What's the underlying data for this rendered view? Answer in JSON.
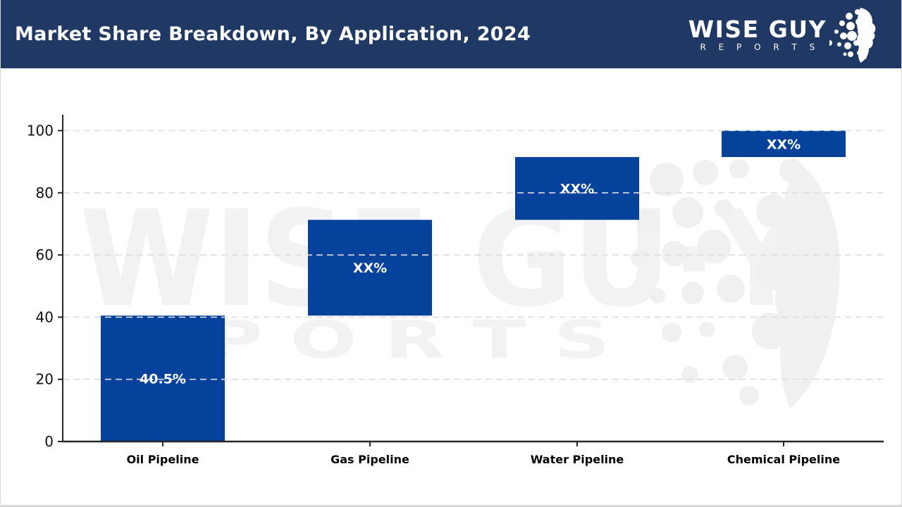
{
  "page": {
    "background": "#ffffff",
    "border_color": "#d9d9d9"
  },
  "header": {
    "bg_color": "#1f3864",
    "title": "Market Share Breakdown, By Application, 2024",
    "brand": {
      "name": "WISE GUY",
      "subtitle": "R E P O R T S"
    }
  },
  "watermark": {
    "line1": "WISE GU·Y",
    "line2": "P O R T S"
  },
  "chart_data": {
    "type": "bar",
    "subtype": "floating-segment waterfall (market share breakdown)",
    "title": "Market Share Breakdown, By Application, 2024",
    "categories": [
      "Oil Pipeline",
      "Gas Pipeline",
      "Water Pipeline",
      "Chemical Pipeline"
    ],
    "segments": [
      {
        "category": "Oil Pipeline",
        "from": 0,
        "to": 40.5,
        "label": "40.5%"
      },
      {
        "category": "Gas Pipeline",
        "from": 40.5,
        "to": 71.3,
        "label": "XX%"
      },
      {
        "category": "Water Pipeline",
        "from": 71.3,
        "to": 91.5,
        "label": "XX%"
      },
      {
        "category": "Chemical Pipeline",
        "from": 91.5,
        "to": 100,
        "label": "XX%"
      }
    ],
    "y_ticks": [
      0,
      20,
      40,
      60,
      80,
      100
    ],
    "ylim": [
      0,
      105
    ],
    "xlabel": "",
    "ylabel": "",
    "legend": "none",
    "grid": "horizontal dashed",
    "bar_color": "#05429b",
    "bar_label_color": "#ffffff",
    "axis_color": "#262626",
    "grid_color": "#dcdcdc",
    "tick_label_color": "#111111"
  }
}
